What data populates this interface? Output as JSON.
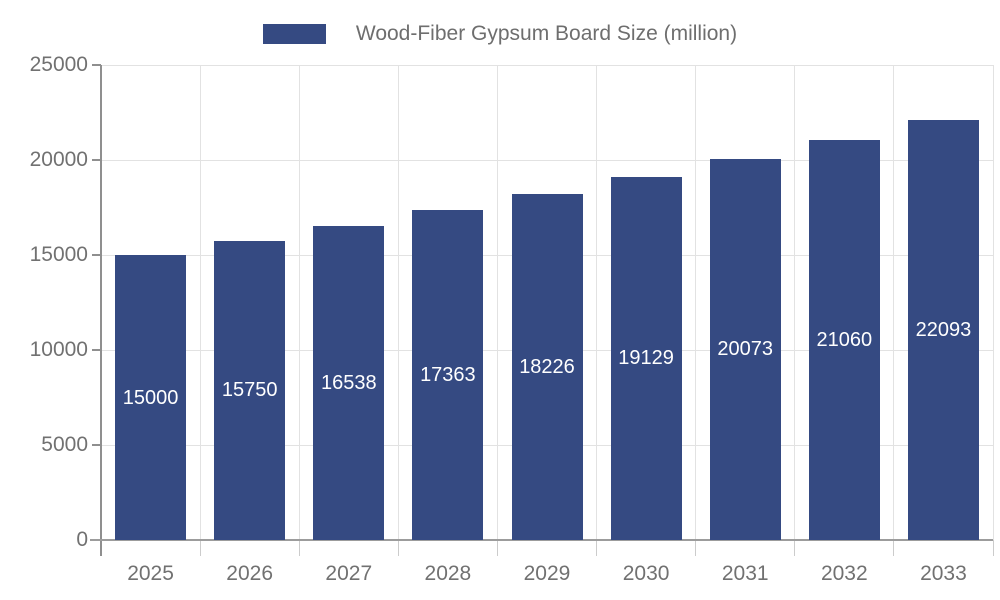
{
  "legend": {
    "label": "Wood-Fiber Gypsum Board Size (million)"
  },
  "chart_data": {
    "type": "bar",
    "title": "Wood-Fiber Gypsum Board Size (million)",
    "xlabel": "",
    "ylabel": "",
    "categories": [
      "2025",
      "2026",
      "2027",
      "2028",
      "2029",
      "2030",
      "2031",
      "2032",
      "2033"
    ],
    "series": [
      {
        "name": "Wood-Fiber Gypsum Board Size (million)",
        "values": [
          15000,
          15750,
          16538,
          17363,
          18226,
          19129,
          20073,
          21060,
          22093
        ]
      }
    ],
    "ylim": [
      0,
      25000
    ],
    "yticks": [
      0,
      5000,
      10000,
      15000,
      20000,
      25000
    ],
    "grid": true,
    "legend_position": "top",
    "bar_labels_visible": true,
    "bar_label_position": "inside-middle"
  },
  "colors": {
    "bar": "#354a82",
    "bar_label": "#ffffff",
    "axis_text": "#717171",
    "legend_text": "#6e6e6e",
    "gridline": "#e2e2e2",
    "axis_line": "#9c9c9c",
    "y_axis_line": "#8f8f8f",
    "x_tick": "#cccccc",
    "background": "#ffffff"
  }
}
